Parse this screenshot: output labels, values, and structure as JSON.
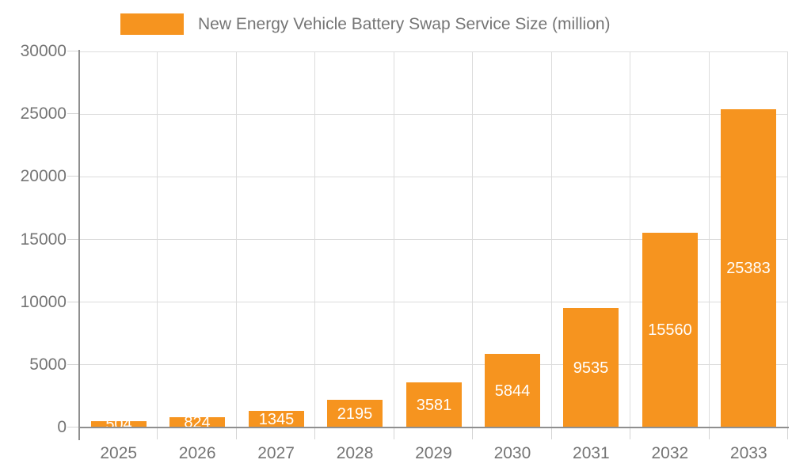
{
  "legend": {
    "label": "New Energy Vehicle Battery Swap Service Size (million)"
  },
  "chart_data": {
    "type": "bar",
    "title": "New Energy Vehicle Battery Swap Service Size (million)",
    "categories": [
      "2025",
      "2026",
      "2027",
      "2028",
      "2029",
      "2030",
      "2031",
      "2032",
      "2033"
    ],
    "values": [
      504,
      824,
      1345,
      2195,
      3581,
      5844,
      9535,
      15560,
      25383
    ],
    "bar_labels": [
      "504",
      "824",
      "1345",
      "2195",
      "3581",
      "5844",
      "9535",
      "15560",
      "25383"
    ],
    "xlabel": "",
    "ylabel": "",
    "ylim": [
      0,
      30000
    ],
    "yticks": [
      0,
      5000,
      10000,
      15000,
      20000,
      25000,
      30000
    ],
    "ytick_labels": [
      "0",
      "5000",
      "10000",
      "15000",
      "20000",
      "25000",
      "30000"
    ],
    "grid": true,
    "legend_position": "top",
    "colors": {
      "bar": "#F6941F",
      "bar_label": "#FFFFFF",
      "axis_text": "#757575",
      "legend_text": "#757575",
      "gridline": "#DCDCDC",
      "tick": "#D4D4D4",
      "axis_line": "#8F8F8F",
      "background": "#FFFFFF"
    }
  }
}
